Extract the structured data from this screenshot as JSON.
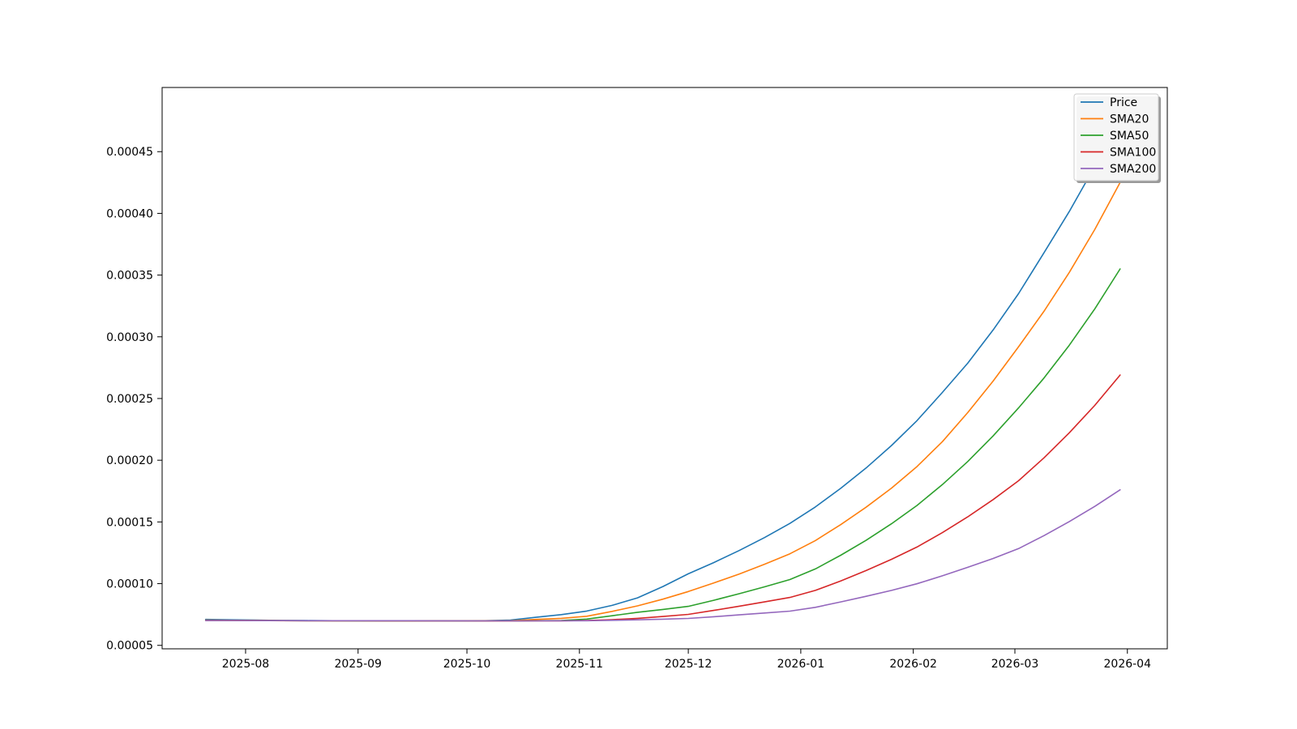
{
  "figure": {
    "background": "#ffffff",
    "title": ""
  },
  "chart_data": {
    "type": "line",
    "title": "",
    "xlabel": "",
    "ylabel": "",
    "grid": false,
    "legend_position": "upper-right",
    "x_dates": [
      "2025-07-21",
      "2025-07-28",
      "2025-08-04",
      "2025-08-11",
      "2025-08-18",
      "2025-08-25",
      "2025-09-01",
      "2025-09-08",
      "2025-09-15",
      "2025-09-22",
      "2025-09-29",
      "2025-10-06",
      "2025-10-13",
      "2025-10-20",
      "2025-10-27",
      "2025-11-03",
      "2025-11-10",
      "2025-11-17",
      "2025-11-24",
      "2025-12-01",
      "2025-12-08",
      "2025-12-15",
      "2025-12-22",
      "2025-12-29",
      "2026-01-05",
      "2026-01-12",
      "2026-01-19",
      "2026-01-26",
      "2026-02-02",
      "2026-02-09",
      "2026-02-16",
      "2026-02-23",
      "2026-03-02",
      "2026-03-09",
      "2026-03-16",
      "2026-03-23",
      "2026-03-30"
    ],
    "series": [
      {
        "name": "Price",
        "color": "#1f77b4",
        "values": [
          7.1e-05,
          7.07e-05,
          7.04e-05,
          7.02e-05,
          7.01e-05,
          7e-05,
          7e-05,
          6.99e-05,
          6.99e-05,
          6.99e-05,
          6.98e-05,
          7e-05,
          7.05e-05,
          7.27e-05,
          7.49e-05,
          7.78e-05,
          8.24e-05,
          8.85e-05,
          9.77e-05,
          0.000108,
          0.000117,
          0.0001268,
          0.0001373,
          0.0001488,
          0.0001621,
          0.0001772,
          0.0001937,
          0.0002119,
          0.000232,
          0.0002549,
          0.0002786,
          0.0003055,
          0.000335,
          0.000368,
          0.0004015,
          0.000438,
          0.000478
        ]
      },
      {
        "name": "SMA20",
        "color": "#ff7f0e",
        "values": [
          7.05e-05,
          7.03e-05,
          7.01e-05,
          7e-05,
          6.995e-05,
          6.99e-05,
          6.99e-05,
          6.985e-05,
          6.985e-05,
          6.98e-05,
          6.98e-05,
          6.985e-05,
          7e-05,
          7.1e-05,
          7.19e-05,
          7.36e-05,
          7.75e-05,
          8.2e-05,
          8.74e-05,
          9.36e-05,
          0.0001005,
          0.0001078,
          0.0001157,
          0.0001242,
          0.0001349,
          0.0001478,
          0.0001619,
          0.0001774,
          0.0001948,
          0.000215,
          0.0002386,
          0.0002641,
          0.0002919,
          0.0003206,
          0.0003522,
          0.0003869,
          0.000425
        ]
      },
      {
        "name": "SMA50",
        "color": "#2ca02c",
        "values": [
          7.03e-05,
          7.02e-05,
          7.01e-05,
          7.005e-05,
          7e-05,
          6.995e-05,
          6.99e-05,
          6.99e-05,
          6.985e-05,
          6.985e-05,
          6.98e-05,
          6.98e-05,
          6.985e-05,
          7e-05,
          7.02e-05,
          7.13e-05,
          7.4e-05,
          7.68e-05,
          7.91e-05,
          8.16e-05,
          8.65e-05,
          9.18e-05,
          9.74e-05,
          0.0001033,
          0.0001119,
          0.000123,
          0.0001351,
          0.0001485,
          0.0001633,
          0.0001802,
          0.0001989,
          0.0002197,
          0.0002424,
          0.0002665,
          0.0002932,
          0.0003226,
          0.000355
        ]
      },
      {
        "name": "SMA100",
        "color": "#d62728",
        "values": [
          7.02e-05,
          7.015e-05,
          7.01e-05,
          7.005e-05,
          7e-05,
          7e-05,
          6.995e-05,
          6.99e-05,
          6.99e-05,
          6.985e-05,
          6.985e-05,
          6.98e-05,
          6.98e-05,
          6.985e-05,
          6.99e-05,
          7.02e-05,
          7.08e-05,
          7.19e-05,
          7.34e-05,
          7.51e-05,
          7.83e-05,
          8.17e-05,
          8.52e-05,
          8.88e-05,
          9.45e-05,
          0.0001022,
          0.0001106,
          0.0001197,
          0.0001296,
          0.0001413,
          0.0001541,
          0.0001681,
          0.0001834,
          0.0002019,
          0.0002222,
          0.0002444,
          0.000269
        ]
      },
      {
        "name": "SMA200",
        "color": "#9467bd",
        "values": [
          7.01e-05,
          7.01e-05,
          7.005e-05,
          7.005e-05,
          7e-05,
          7e-05,
          7e-05,
          6.995e-05,
          6.995e-05,
          6.99e-05,
          6.99e-05,
          6.985e-05,
          6.985e-05,
          6.985e-05,
          6.99e-05,
          7e-05,
          7.03e-05,
          7.07e-05,
          7.12e-05,
          7.18e-05,
          7.32e-05,
          7.47e-05,
          7.62e-05,
          7.77e-05,
          8.08e-05,
          8.52e-05,
          8.97e-05,
          9.45e-05,
          9.99e-05,
          0.0001063,
          0.0001132,
          0.0001204,
          0.0001284,
          0.0001389,
          0.0001503,
          0.0001626,
          0.000176
        ]
      }
    ],
    "xlim": [
      "2025-07-09",
      "2026-04-12"
    ],
    "ylim": [
      4.72e-05,
      0.000502
    ],
    "xticks": [
      {
        "date": "2025-08-01",
        "label": "2025-08"
      },
      {
        "date": "2025-09-01",
        "label": "2025-09"
      },
      {
        "date": "2025-10-01",
        "label": "2025-10"
      },
      {
        "date": "2025-11-01",
        "label": "2025-11"
      },
      {
        "date": "2025-12-01",
        "label": "2025-12"
      },
      {
        "date": "2026-01-01",
        "label": "2026-01"
      },
      {
        "date": "2026-02-01",
        "label": "2026-02"
      },
      {
        "date": "2026-03-01",
        "label": "2026-03"
      },
      {
        "date": "2026-04-01",
        "label": "2026-04"
      }
    ],
    "yticks": [
      {
        "value": 5e-05,
        "label": "0.00005"
      },
      {
        "value": 0.0001,
        "label": "0.00010"
      },
      {
        "value": 0.00015,
        "label": "0.00015"
      },
      {
        "value": 0.0002,
        "label": "0.00020"
      },
      {
        "value": 0.00025,
        "label": "0.00025"
      },
      {
        "value": 0.0003,
        "label": "0.00030"
      },
      {
        "value": 0.00035,
        "label": "0.00035"
      },
      {
        "value": 0.0004,
        "label": "0.00040"
      },
      {
        "value": 0.00045,
        "label": "0.00045"
      }
    ],
    "legend": {
      "entries": [
        "Price",
        "SMA20",
        "SMA50",
        "SMA100",
        "SMA200"
      ],
      "face_color": "#ffffff",
      "edge_color": "#cccccc",
      "shadow_color": "#999999"
    }
  }
}
